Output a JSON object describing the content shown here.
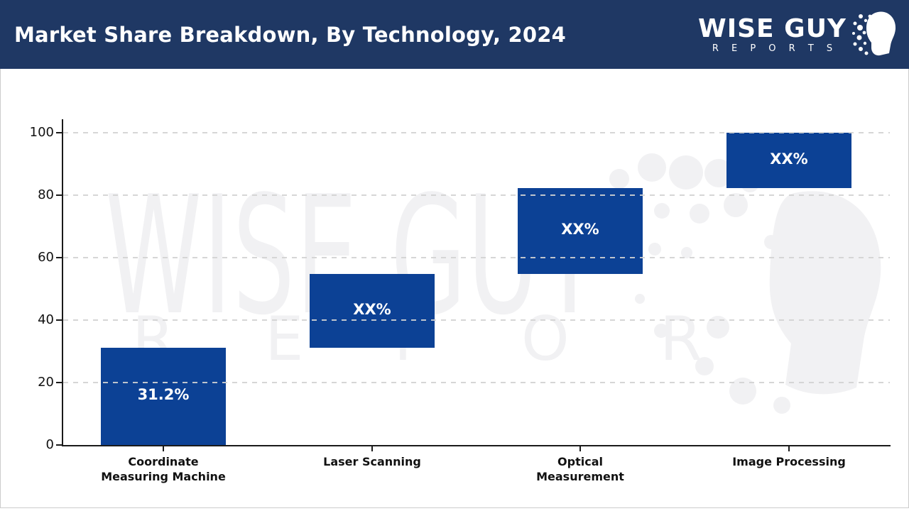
{
  "header": {
    "title": "Market Share Breakdown, By Technology, 2024",
    "brand_line1": "WISE GUY",
    "brand_line2": "R E P O R T S"
  },
  "watermark": {
    "line1": "WISE GUY",
    "line2": "REPORTS"
  },
  "chart_data": {
    "type": "bar",
    "subtype": "waterfall",
    "title": "Market Share Breakdown, By Technology, 2024",
    "categories": [
      "Coordinate\nMeasuring Machine",
      "Laser Scanning",
      "Optical\nMeasurement",
      "Image Processing"
    ],
    "segments": [
      {
        "category": "Coordinate Measuring Machine",
        "start": 0,
        "end": 31.2,
        "label": "31.2%"
      },
      {
        "category": "Laser Scanning",
        "start": 31.2,
        "end": 54.8,
        "label": "XX%"
      },
      {
        "category": "Optical Measurement",
        "start": 54.8,
        "end": 82.3,
        "label": "XX%"
      },
      {
        "category": "Image Processing",
        "start": 82.3,
        "end": 100,
        "label": "XX%"
      }
    ],
    "ylim": [
      0,
      100
    ],
    "yticks": [
      0,
      20,
      40,
      60,
      80,
      100
    ],
    "grid": true,
    "legend_position": "none",
    "bar_color": "#0c4195",
    "bar_label_color": "#ffffff"
  },
  "colors": {
    "header_bg": "#1f3864",
    "bar": "#0c4195",
    "grid": "#d2d2d2",
    "axis": "#1a1a1a",
    "watermark": "#f1f1f3",
    "frame_border": "#cccccc"
  }
}
